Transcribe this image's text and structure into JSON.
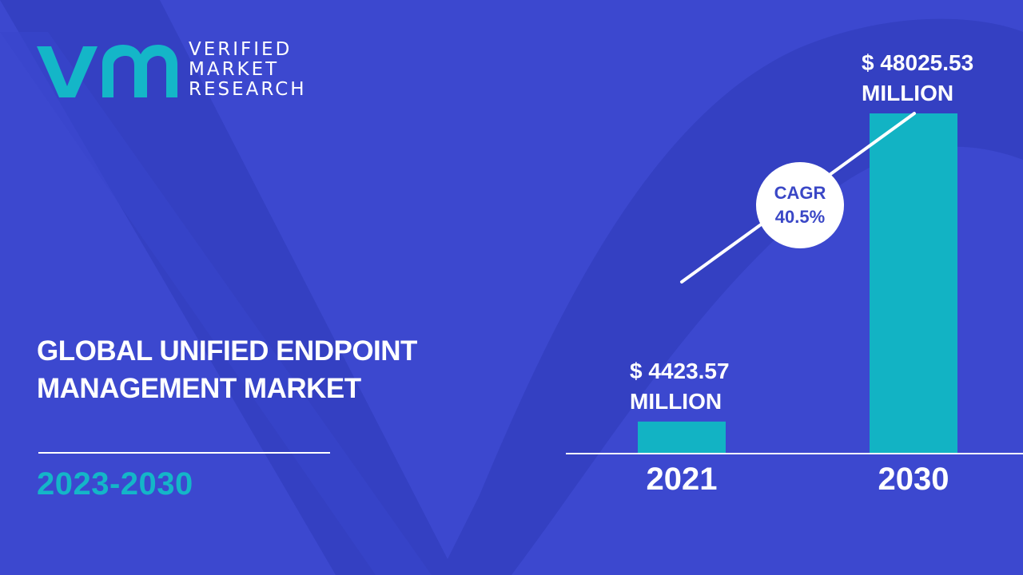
{
  "brand": {
    "line1": "VERIFIED",
    "line2": "MARKET",
    "line3": "RESEARCH",
    "mark_color": "#14b6c8"
  },
  "title": {
    "line1": "GLOBAL UNIFIED ENDPOINT",
    "line2": "MANAGEMENT MARKET"
  },
  "period": "2023-2030",
  "colors": {
    "background": "#3c48cf",
    "background_shape": "#3340c1",
    "bar": "#12b3c4",
    "text": "#ffffff",
    "accent": "#14b6c8"
  },
  "chart_data": {
    "type": "bar",
    "title": "",
    "xlabel": "",
    "ylabel": "",
    "categories": [
      "2021",
      "2030"
    ],
    "values": [
      4423.57,
      48025.53
    ],
    "value_labels": [
      {
        "line1": "$ 4423.57",
        "line2": "MILLION"
      },
      {
        "line1": "$ 48025.53",
        "line2": "MILLION"
      }
    ],
    "cagr": {
      "label": "CAGR",
      "value": "40.5%"
    },
    "grid": false,
    "legend": "none"
  }
}
